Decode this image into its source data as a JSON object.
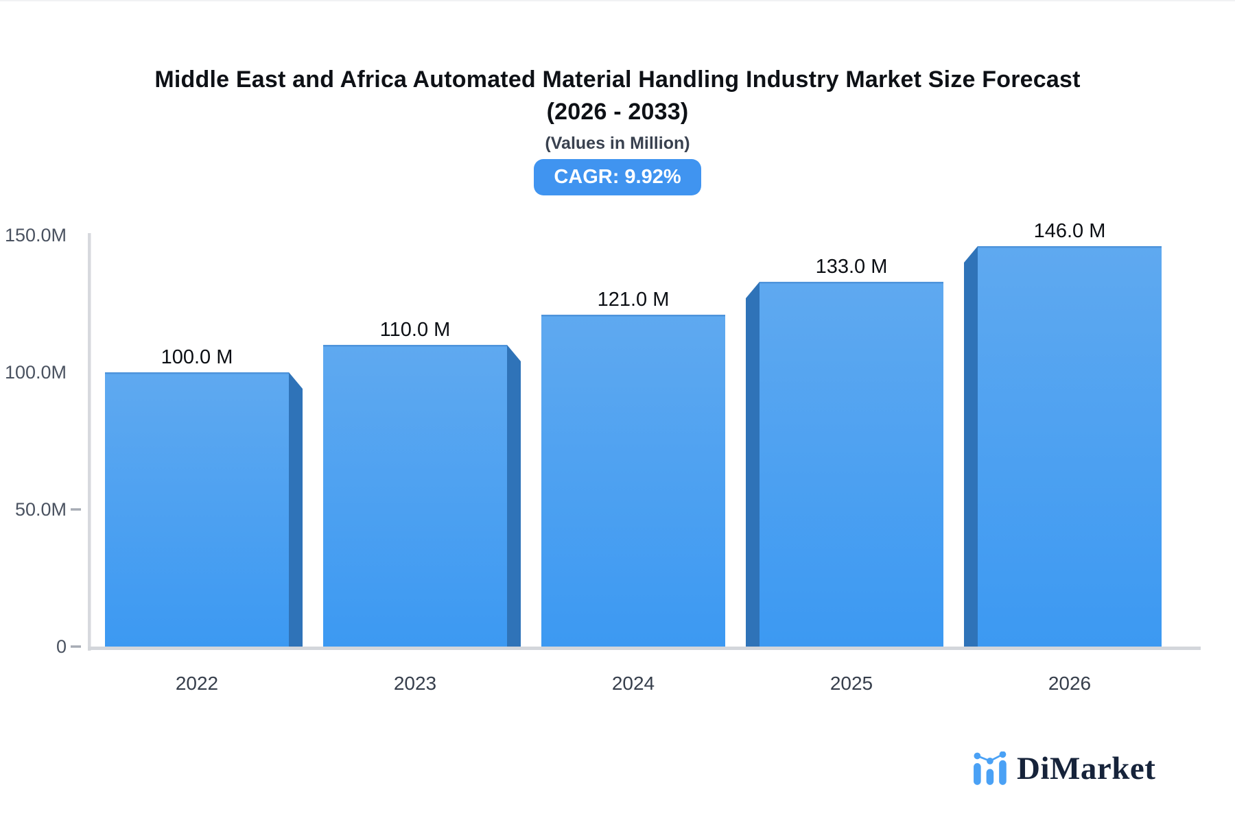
{
  "title": {
    "line1": "Middle East and Africa Automated Material Handling Industry Market Size Forecast",
    "line2": "(2026 - 2033)"
  },
  "subtitle": "(Values in Million)",
  "badge": {
    "label": "CAGR: 9.92%",
    "bg_color": "#4094F0",
    "text_color": "#FFFFFF"
  },
  "watermark": {
    "brand": "DiMarket",
    "icon": "mini-bar-chart-with-trend-dots",
    "icon_color": "#4AA1F5",
    "text_color": "#16233A"
  },
  "chart_data": {
    "type": "bar",
    "title": "Middle East and Africa Automated Material Handling Industry Market Size Forecast (2026 - 2033)",
    "subtitle": "(Values in Million)",
    "xlabel": "",
    "ylabel": "",
    "unit": "Million",
    "categories": [
      "2022",
      "2023",
      "2024",
      "2025",
      "2026"
    ],
    "values": [
      100.0,
      110.0,
      121.0,
      133.0,
      146.0
    ],
    "value_labels": [
      "100.0 M",
      "110.0 M",
      "121.0 M",
      "133.0 M",
      "146.0 M"
    ],
    "ylim": [
      0,
      150
    ],
    "yticks": [
      {
        "value": 150,
        "label": "150.0M",
        "dash": false
      },
      {
        "value": 100,
        "label": "100.0M",
        "dash": false
      },
      {
        "value": 50,
        "label": "50.0M",
        "dash": true
      },
      {
        "value": 0,
        "label": "0",
        "dash": true
      }
    ],
    "grid": false,
    "legend": false,
    "style": "3d-perspective-bars",
    "colors": {
      "face_top": "#5FA9F0",
      "face_bottom": "#3C99F2",
      "face_edge": "#4E94DB",
      "side": "#2F73B8",
      "axis_line": "#D7D9DE",
      "base_line": "#D3D6DB",
      "tick_mark": "#A6ABB4",
      "ytick_text": "#4A5260",
      "xtick_text": "#363E4B",
      "value_text": "#0B0E13"
    }
  }
}
